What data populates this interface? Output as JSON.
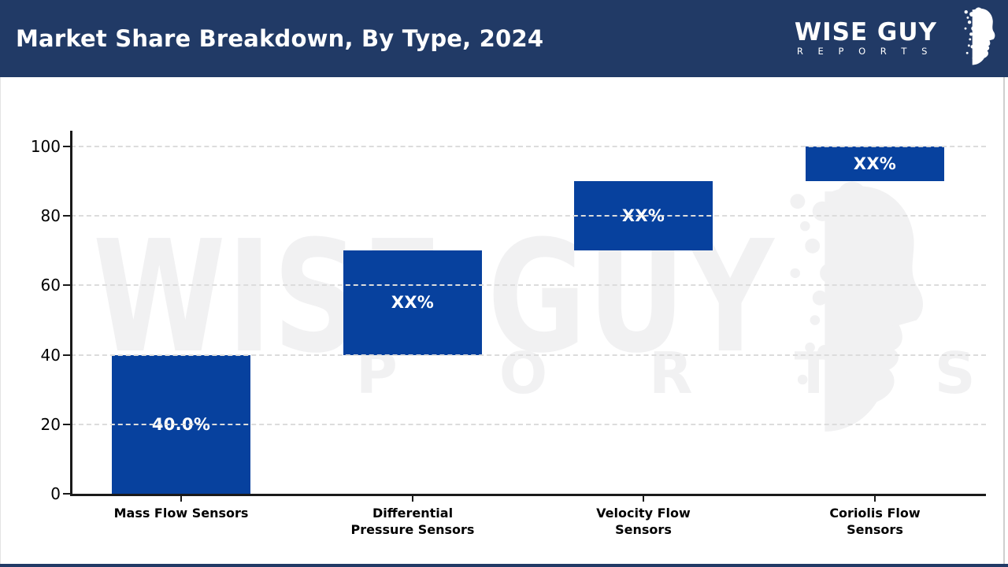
{
  "header": {
    "title": "Market Share Breakdown, By Type, 2024",
    "logo": {
      "name": "WISE GUY",
      "sub": "R E P O R T S"
    }
  },
  "watermark": {
    "line1": "WISE GUY",
    "line2": "P O R T S"
  },
  "chart_data": {
    "type": "bar",
    "subtype": "floating-waterfall",
    "title": "Market Share Breakdown, By Type, 2024",
    "categories": [
      "Mass Flow Sensors",
      "Differential\nPressure Sensors",
      "Velocity Flow\nSensors",
      "Coriolis Flow\nSensors"
    ],
    "bars": [
      {
        "category": "Mass Flow Sensors",
        "start": 0,
        "end": 40,
        "height": 40,
        "label": "40.0%"
      },
      {
        "category": "Differential Pressure Sensors",
        "start": 40,
        "end": 70,
        "height": 30,
        "label": "XX%"
      },
      {
        "category": "Velocity Flow Sensors",
        "start": 70,
        "end": 90,
        "height": 20,
        "label": "XX%"
      },
      {
        "category": "Coriolis Flow Sensors",
        "start": 90,
        "end": 100,
        "height": 10,
        "label": "XX%"
      }
    ],
    "xlabel": "",
    "ylabel": "",
    "ylim": [
      0,
      100
    ],
    "yticks": [
      0,
      20,
      40,
      60,
      80,
      100
    ],
    "grid": {
      "axis": "y",
      "style": "dashed",
      "drawn_above_bars": true
    },
    "legend": null
  },
  "colors": {
    "header_bg": "#213a66",
    "footer_bg": "#213a66",
    "bar": "#07419e",
    "bar_label": "#ffffff",
    "grid": "#dcdcdc",
    "axis": "#1a1a1a",
    "tick_label": "#000000",
    "watermark": "#f1f1f2",
    "title_text": "#ffffff"
  }
}
